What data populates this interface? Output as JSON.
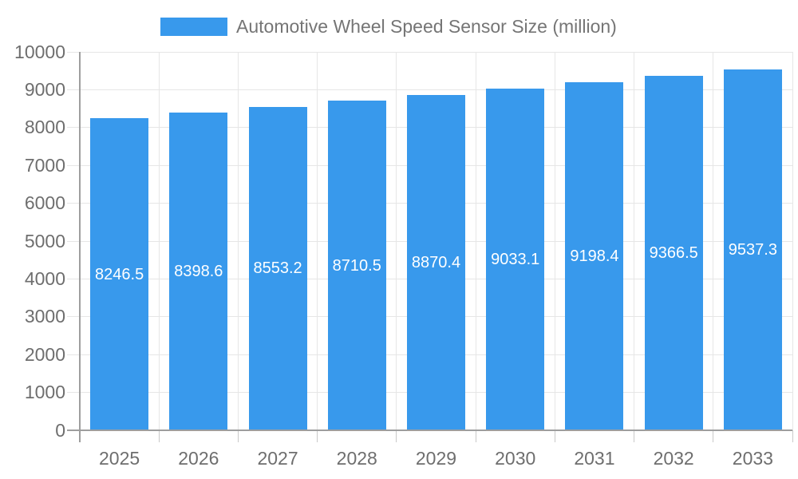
{
  "legend": {
    "label": "Automotive Wheel Speed Sensor Size (million)"
  },
  "chart_data": {
    "type": "bar",
    "title": "Automotive Wheel Speed Sensor Size (million)",
    "categories": [
      "2025",
      "2026",
      "2027",
      "2028",
      "2029",
      "2030",
      "2031",
      "2032",
      "2033"
    ],
    "series": [
      {
        "name": "Automotive Wheel Speed Sensor Size (million)",
        "values": [
          8246.5,
          8398.6,
          8553.2,
          8710.5,
          8870.4,
          9033.1,
          9198.4,
          9366.5,
          9537.3
        ],
        "labels": [
          "8246.5",
          "8398.6",
          "8553.2",
          "8710.5",
          "8870.4",
          "9033.1",
          "9198.4",
          "9366.5",
          "9537.3"
        ]
      }
    ],
    "xlabel": "",
    "ylabel": "",
    "ylim": [
      0,
      10000
    ],
    "y_ticks": [
      0,
      1000,
      2000,
      3000,
      4000,
      5000,
      6000,
      7000,
      8000,
      9000,
      10000
    ],
    "grid": true,
    "legend_position": "top",
    "colors": {
      "bar": "#3899EC",
      "bar_label": "#FFFFFF",
      "axis_text": "#6E6E6E",
      "legend_text": "#757575",
      "gridline": "#E6E6E6",
      "minor_tick": "#C9C9C9",
      "axis_line": "#9E9E9E"
    }
  }
}
